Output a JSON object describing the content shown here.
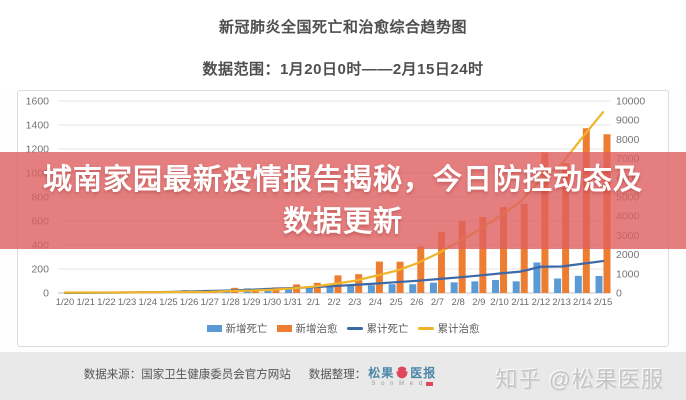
{
  "header": {
    "title": "新冠肺炎全国死亡和治愈综合趋势图",
    "subtitle": "数据范围：1月20日0时——2月15日24时"
  },
  "overlay": {
    "line1": "城南家园最新疫情报告揭秘，今日防控动态及",
    "line2": "数据更新",
    "banner_color": "#DE5F5F"
  },
  "chart_data": {
    "type": "bar+line combo",
    "title": "新冠肺炎全国死亡和治愈综合趋势图",
    "categories": [
      "1/20",
      "1/21",
      "1/22",
      "1/23",
      "1/24",
      "1/25",
      "1/26",
      "1/27",
      "1/28",
      "1/29",
      "1/30",
      "1/31",
      "2/1",
      "2/2",
      "2/3",
      "2/4",
      "2/5",
      "2/6",
      "2/7",
      "2/8",
      "2/9",
      "2/10",
      "2/11",
      "2/12",
      "2/13",
      "2/14",
      "2/15"
    ],
    "series": [
      {
        "name": "新增死亡",
        "type": "bar",
        "axis": "left",
        "color": "#5B9BD5",
        "values": [
          1,
          3,
          8,
          8,
          16,
          15,
          24,
          26,
          26,
          38,
          43,
          46,
          45,
          57,
          64,
          65,
          73,
          73,
          86,
          89,
          97,
          108,
          97,
          254,
          121,
          143,
          142
        ]
      },
      {
        "name": "新增治愈",
        "type": "bar",
        "axis": "left",
        "color": "#ED7D31",
        "values": [
          0,
          0,
          3,
          6,
          4,
          11,
          2,
          9,
          43,
          21,
          47,
          72,
          85,
          147,
          157,
          262,
          261,
          387,
          510,
          600,
          632,
          716,
          744,
          1171,
          1081,
          1373,
          1323
        ]
      },
      {
        "name": "累计死亡",
        "type": "line",
        "axis": "right",
        "color": "#3D68A8",
        "values": [
          6,
          9,
          17,
          25,
          41,
          56,
          80,
          106,
          132,
          170,
          213,
          259,
          304,
          361,
          425,
          490,
          563,
          636,
          722,
          811,
          908,
          1016,
          1113,
          1367,
          1380,
          1523,
          1665
        ]
      },
      {
        "name": "累计治愈",
        "type": "line",
        "axis": "right",
        "color": "#F0B429",
        "values": [
          25,
          25,
          28,
          34,
          38,
          49,
          51,
          60,
          103,
          124,
          171,
          243,
          328,
          475,
          632,
          892,
          1153,
          1540,
          2050,
          2649,
          3281,
          3996,
          4740,
          5911,
          6723,
          8096,
          9419
        ]
      }
    ],
    "left_axis": {
      "min": 0,
      "max": 1600,
      "step": 200
    },
    "right_axis": {
      "min": 0,
      "max": 10000,
      "step": 1000
    },
    "grid": true,
    "legend_position": "bottom",
    "xlabel": "",
    "ylabel": ""
  },
  "footer": {
    "source": "数据来源：国家卫生健康委员会官方网站",
    "credit_label": "数据整理：",
    "logo": {
      "part1": "松果",
      "part2": "医报",
      "caption": "S o n M e d",
      "icon_color": "#E0475C"
    },
    "watermark": "知乎 @松果医服"
  }
}
